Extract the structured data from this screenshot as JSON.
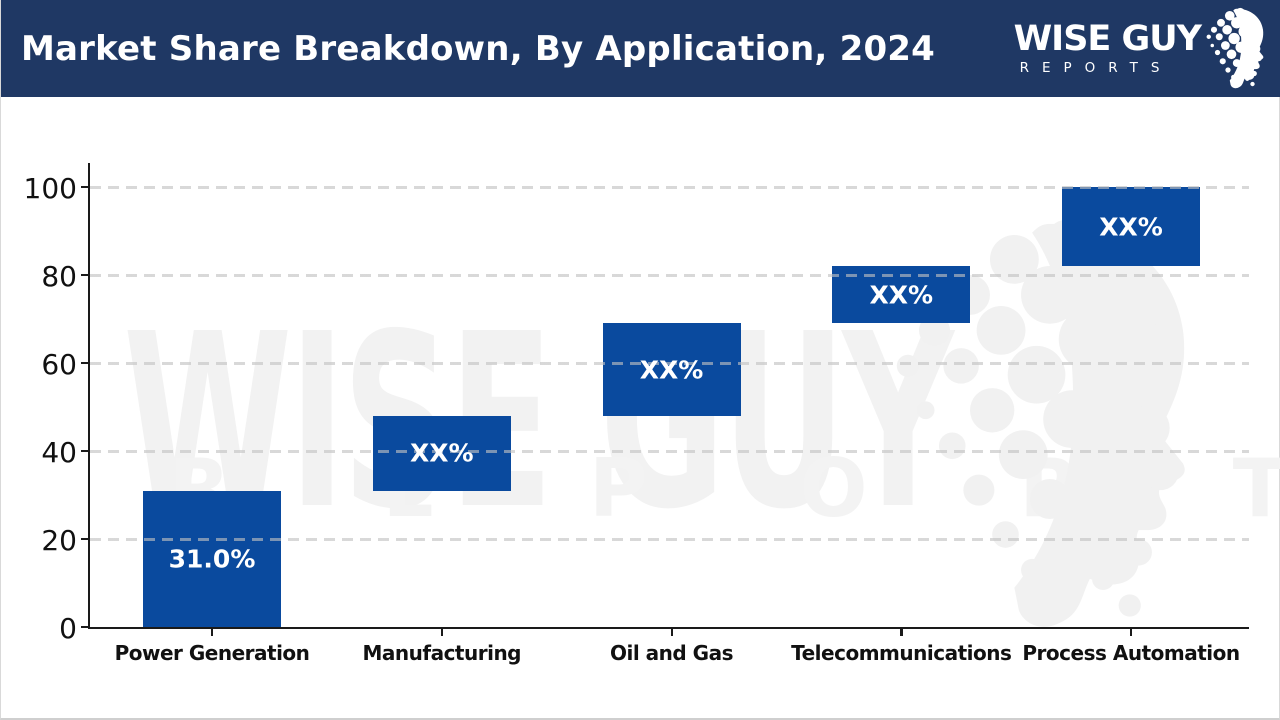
{
  "header": {
    "title": "Market Share Breakdown, By Application, 2024",
    "logo": {
      "line1": "WISE GUY",
      "line2": "REPORTS"
    }
  },
  "watermark": {
    "line1": "WISE GUY",
    "line2": "R E P O R T S"
  },
  "icons": {
    "logo_head": "dotted-face-profile"
  },
  "colors": {
    "header_bg": "#1f3864",
    "bar": "#0a4a9e",
    "grid": "#c9c9c9",
    "axis": "#1a1a1a",
    "bar_label_text": "#ffffff",
    "watermark": "#f2f2f2"
  },
  "chart_data": {
    "type": "bar",
    "subtype": "waterfall",
    "title": "Market Share Breakdown, By Application, 2024",
    "categories": [
      "Power Generation",
      "Manufacturing",
      "Oil and Gas",
      "Telecommunications",
      "Process Automation"
    ],
    "bars": [
      {
        "category": "Power Generation",
        "start": 0,
        "end": 31,
        "value": 31,
        "value_label": "31.0%"
      },
      {
        "category": "Manufacturing",
        "start": 31,
        "end": 48,
        "value": 17,
        "value_label": "XX%"
      },
      {
        "category": "Oil and Gas",
        "start": 48,
        "end": 69,
        "value": 21,
        "value_label": "XX%"
      },
      {
        "category": "Telecommunications",
        "start": 69,
        "end": 82,
        "value": 13,
        "value_label": "XX%"
      },
      {
        "category": "Process Automation",
        "start": 82,
        "end": 100,
        "value": 18,
        "value_label": "XX%"
      }
    ],
    "yticks": [
      0,
      20,
      40,
      60,
      80,
      100
    ],
    "ylim": [
      0,
      105
    ],
    "xlabel": "",
    "ylabel": "",
    "grid": "horizontal-dashed",
    "legend": "none"
  }
}
